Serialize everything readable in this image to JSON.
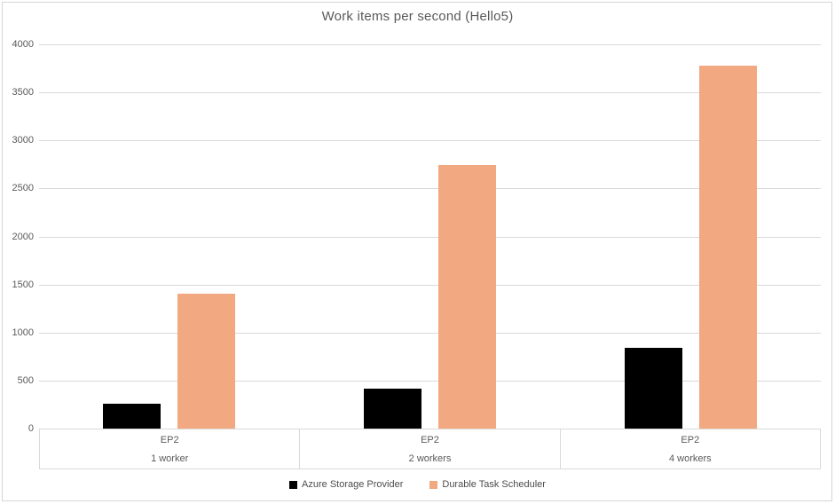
{
  "chart_data": {
    "type": "bar",
    "title": "Work items per second (Hello5)",
    "categories": [
      {
        "top_label": "EP2",
        "bottom_label": "1 worker"
      },
      {
        "top_label": "EP2",
        "bottom_label": "2 workers"
      },
      {
        "top_label": "EP2",
        "bottom_label": "4 workers"
      }
    ],
    "series": [
      {
        "name": "Azure Storage Provider",
        "color": "#000000",
        "values": [
          260,
          420,
          840
        ]
      },
      {
        "name": "Durable Task Scheduler",
        "color": "#f2a880",
        "values": [
          1400,
          2740,
          3780
        ]
      }
    ],
    "ylim": [
      0,
      4000
    ],
    "yticks": [
      0,
      500,
      1000,
      1500,
      2000,
      2500,
      3000,
      3500,
      4000
    ],
    "xlabel": "",
    "ylabel": "",
    "grid": "horizontal",
    "legend_position": "bottom"
  },
  "colors": {
    "gridline": "#d9d9d9",
    "axis_border": "#d9d9d9",
    "frame_border": "#d6d6d6",
    "text": "#595959",
    "background": "#ffffff"
  }
}
